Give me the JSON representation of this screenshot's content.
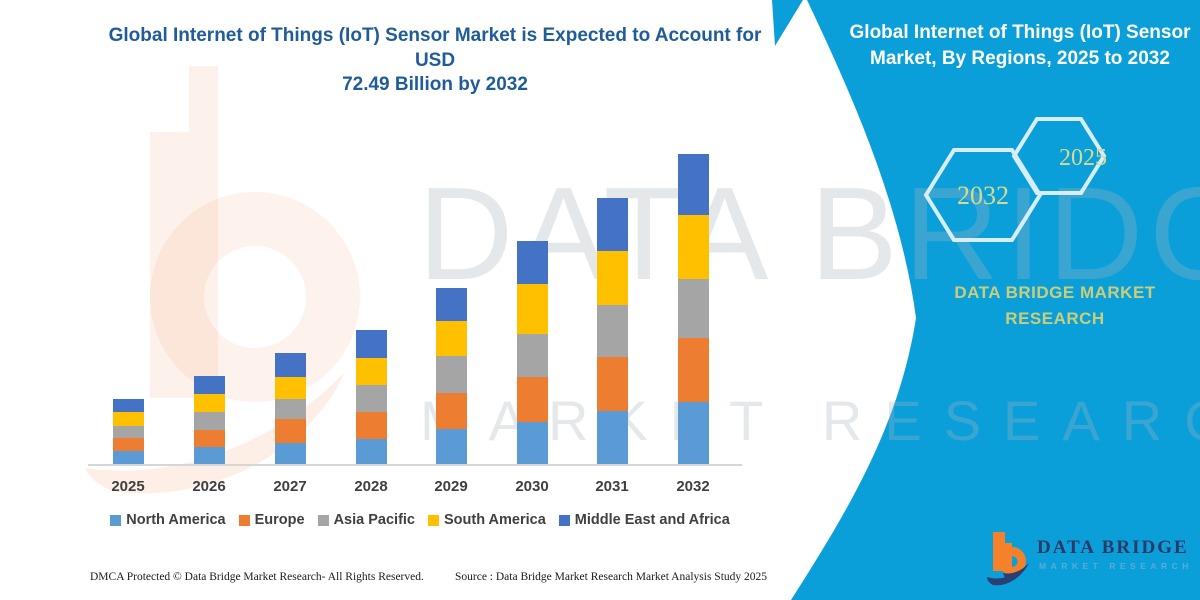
{
  "header": {
    "title_line1": "Global Internet of Things (IoT) Sensor Market is Expected to Account for USD",
    "title_line2": "72.49 Billion by 2032",
    "title_color": "#1F5C99"
  },
  "sidebar": {
    "panel_color": "#0B9FDA",
    "title_line1": "Global Internet of Things (IoT) Sensor",
    "title_line2": "Market, By Regions, 2025 to 2032",
    "hexagons": [
      {
        "year": "2032"
      },
      {
        "year": "2025"
      }
    ],
    "brand_line1": "DATA BRIDGE MARKET",
    "brand_line2": "RESEARCH",
    "brand_color": "#C9CE7B"
  },
  "chart_data": {
    "type": "bar",
    "stacked": true,
    "title": "Global Internet of Things (IoT) Sensor Market is Expected to Account for USD 72.49 Billion by 2032",
    "unit": "USD Billion",
    "categories": [
      "2025",
      "2026",
      "2027",
      "2028",
      "2029",
      "2030",
      "2031",
      "2032"
    ],
    "series": [
      {
        "name": "North America",
        "color": "#5B9BD5",
        "values": [
          3.3,
          4.2,
          5.1,
          6.1,
          8.4,
          10.0,
          12.6,
          14.7
        ]
      },
      {
        "name": "Europe",
        "color": "#ED7D31",
        "values": [
          3.0,
          4.0,
          5.6,
          6.3,
          8.4,
          10.5,
          12.6,
          14.9
        ]
      },
      {
        "name": "Asia Pacific",
        "color": "#A5A5A5",
        "values": [
          2.8,
          4.2,
          4.7,
          6.3,
          8.6,
          10.0,
          12.1,
          13.8
        ]
      },
      {
        "name": "South America",
        "color": "#FFC000",
        "values": [
          3.3,
          4.2,
          5.1,
          6.3,
          8.2,
          11.7,
          12.6,
          14.9
        ]
      },
      {
        "name": "Middle East and Africa",
        "color": "#4472C4",
        "values": [
          3.0,
          4.2,
          5.6,
          6.5,
          7.7,
          10.0,
          12.4,
          14.2
        ]
      }
    ],
    "totals": [
      15.4,
      20.8,
      26.1,
      31.5,
      41.3,
      52.2,
      62.3,
      72.49
    ],
    "highlight_total_2032": 72.49,
    "ylim": [
      0,
      75
    ],
    "xlabel": "",
    "ylabel": "",
    "grid": false,
    "legend_position": "bottom"
  },
  "watermark": {
    "line1": "DATA BRIDGE",
    "line2": "MARKET RESEARCH"
  },
  "footer": {
    "left": "DMCA Protected © Data Bridge Market Research- All Rights Reserved.",
    "source": "Source : Data Bridge Market Research Market Analysis Study 2025"
  },
  "logo": {
    "name": "DATA BRIDGE",
    "subtext": "MARKET RESEARCH",
    "orange": "#F5822A",
    "navy": "#2B3A66"
  }
}
